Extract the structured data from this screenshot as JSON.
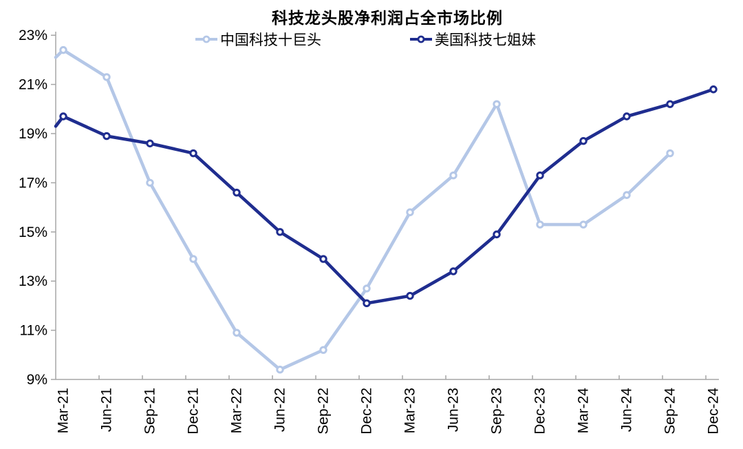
{
  "chart_data": {
    "type": "line",
    "title": "科技龙头股净利润占全市场比例",
    "categories": [
      "Mar-21",
      "Jun-21",
      "Sep-21",
      "Dec-21",
      "Mar-22",
      "Jun-22",
      "Sep-22",
      "Dec-22",
      "Mar-23",
      "Jun-23",
      "Sep-23",
      "Dec-23",
      "Mar-24",
      "Jun-24",
      "Sep-24",
      "Dec-24"
    ],
    "series": [
      {
        "name": "中国科技十巨头",
        "color": "#B4C7E7",
        "values": [
          22.4,
          21.3,
          17.0,
          13.9,
          10.9,
          9.4,
          10.2,
          12.7,
          15.8,
          17.3,
          20.2,
          15.3,
          15.3,
          16.5,
          18.2,
          null
        ]
      },
      {
        "name": "美国科技七姐妹",
        "color": "#1F2D8F",
        "values": [
          19.7,
          18.9,
          18.6,
          18.2,
          16.6,
          15.0,
          13.9,
          12.1,
          12.4,
          13.4,
          14.9,
          17.3,
          18.7,
          19.7,
          20.2,
          20.8
        ]
      }
    ],
    "lead_in_values": [
      22.1,
      19.3
    ],
    "ylim": [
      9,
      23
    ],
    "ytick_step": 2,
    "ytick_labels": [
      "9%",
      "11%",
      "13%",
      "15%",
      "17%",
      "19%",
      "21%",
      "23%"
    ],
    "grid": false,
    "legend_position": "top",
    "marker": "open-circle",
    "axis_color": "#A6A6A6",
    "text_color": "#000000"
  }
}
